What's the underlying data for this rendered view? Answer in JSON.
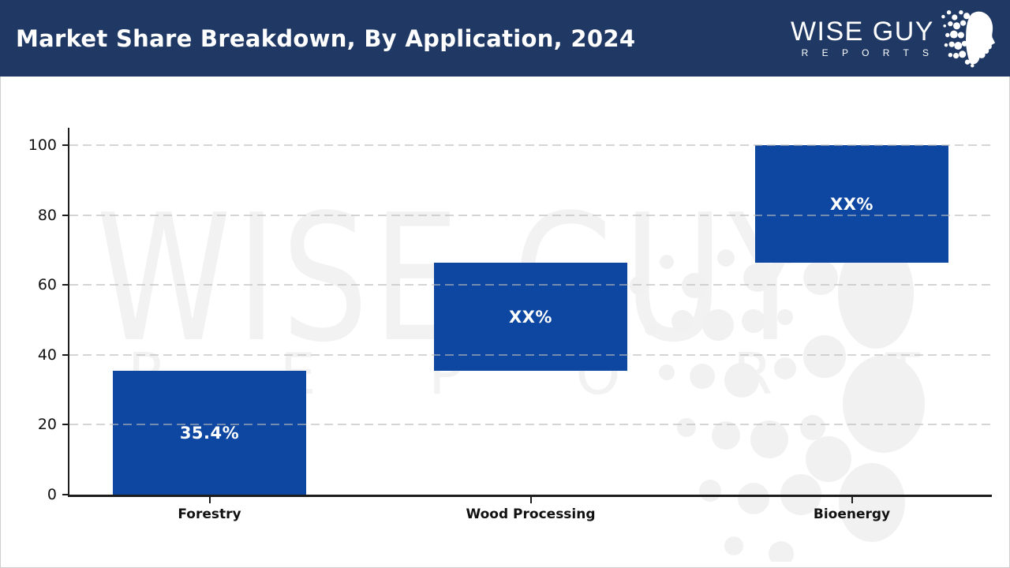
{
  "header": {
    "title": "Market Share Breakdown, By Application, 2024",
    "logo": {
      "line1": "WISE GUY",
      "line2": "R E P O R T S"
    }
  },
  "watermark": {
    "line1": "WISE GUY",
    "line2": "R E P O R T S"
  },
  "chart_data": {
    "type": "bar",
    "subtype": "waterfall",
    "title": "",
    "xlabel": "",
    "ylabel": "",
    "categories": [
      "Forestry",
      "Wood Processing",
      "Bioenergy"
    ],
    "series": [
      {
        "name": "Market Share",
        "segments": [
          {
            "category": "Forestry",
            "start": 0,
            "end": 35.4,
            "label": "35.4%"
          },
          {
            "category": "Wood Processing",
            "start": 35.4,
            "end": 66.3,
            "label": "XX%"
          },
          {
            "category": "Bioenergy",
            "start": 66.3,
            "end": 100,
            "label": "XX%"
          }
        ]
      }
    ],
    "yticks": [
      0,
      20,
      40,
      60,
      80,
      100
    ],
    "ylim": [
      0,
      105
    ],
    "grid": "horizontal-dashed",
    "legend": "none",
    "bar_color": "#0d47a1",
    "bar_label_color": "#ffffff"
  },
  "colors": {
    "header_bg": "#1f3864",
    "header_text": "#ffffff",
    "bar": "#0d47a1",
    "axis": "#1c1c1c",
    "grid": "#d9d9d9",
    "watermark": "#f2f2f2",
    "page_bg": "#ffffff",
    "page_border": "#cfcfcf"
  }
}
